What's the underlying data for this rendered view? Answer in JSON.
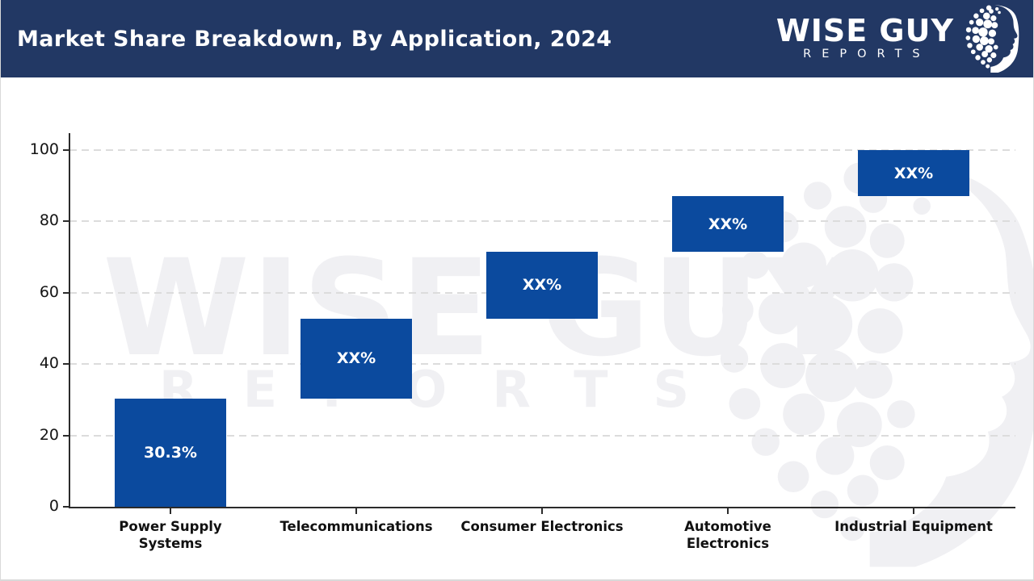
{
  "header": {
    "title": "Market Share Breakdown, By Application, 2024",
    "brand": {
      "name": "WISE GUY",
      "sub": "REPORTS"
    }
  },
  "watermark": {
    "line1": "WISE GUY",
    "line2": "REPORTS"
  },
  "chart_data": {
    "type": "bar",
    "subtype": "waterfall",
    "title": "Market Share Breakdown, By Application, 2024",
    "categories": [
      "Power Supply Systems",
      "Telecommunications",
      "Consumer Electronics",
      "Automotive Electronics",
      "Industrial Equipment"
    ],
    "segments": [
      {
        "category": "Power Supply Systems",
        "label": "30.3%",
        "start": 0,
        "end": 30.3
      },
      {
        "category": "Telecommunications",
        "label": "XX%",
        "start": 30.3,
        "end": 52.8
      },
      {
        "category": "Consumer Electronics",
        "label": "XX%",
        "start": 52.8,
        "end": 71.5
      },
      {
        "category": "Automotive Electronics",
        "label": "XX%",
        "start": 71.5,
        "end": 87.0
      },
      {
        "category": "Industrial Equipment",
        "label": "XX%",
        "start": 87.0,
        "end": 100.0
      }
    ],
    "xlabel": "",
    "ylabel": "",
    "ylim": [
      0,
      100
    ],
    "yticks": [
      0,
      20,
      40,
      60,
      80,
      100
    ],
    "grid": "horizontal-dashed",
    "legend": null
  },
  "colors": {
    "header_bg": "#223864",
    "header_text": "#ffffff",
    "bar": "#0b4a9e",
    "bar_label": "#ffffff",
    "axis": "#2b2b2b",
    "gridline": "#dcdcdc",
    "tick_label": "#141414",
    "category_label": "#111111",
    "watermark": "#f0f0f3"
  }
}
